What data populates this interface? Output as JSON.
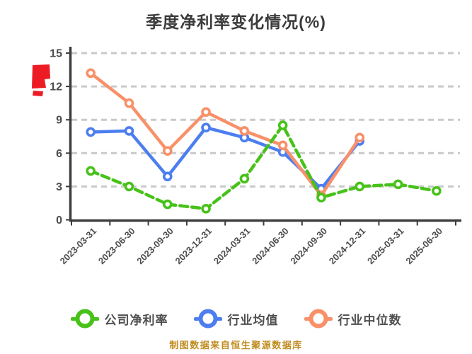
{
  "footer": "制图数据来自恒生聚源数据库",
  "logo": {
    "color": "#ed1c24"
  },
  "axis_style": {
    "axis_color": "#3d3d3d",
    "grid_color": "#c9c9c9",
    "label_color": "#4d4d4d"
  },
  "chart_data": {
    "type": "line",
    "title": "季度净利率变化情况(%)",
    "categories": [
      "2023-03-31",
      "2023-06-30",
      "2023-09-30",
      "2023-12-31",
      "2024-03-31",
      "2024-06-30",
      "2024-09-30",
      "2024-12-31",
      "2025-03-31",
      "2025-06-30"
    ],
    "series": [
      {
        "name": "公司净利率",
        "color": "#47c219",
        "style": "dashed",
        "values": [
          4.4,
          3.0,
          1.4,
          1.0,
          3.7,
          8.5,
          2.0,
          3.0,
          3.2,
          2.6
        ]
      },
      {
        "name": "行业均值",
        "color": "#4d7ef0",
        "style": "solid",
        "values": [
          7.9,
          8.0,
          3.9,
          8.3,
          7.4,
          6.1,
          2.8,
          7.1,
          null,
          null
        ]
      },
      {
        "name": "行业中位数",
        "color": "#f89069",
        "style": "solid",
        "values": [
          13.2,
          10.5,
          6.2,
          9.7,
          8.0,
          6.7,
          2.2,
          7.4,
          null,
          null
        ]
      }
    ],
    "ylim": [
      0,
      15
    ],
    "yticks": [
      0,
      3,
      6,
      9,
      12,
      15
    ],
    "grid": true,
    "legend_position": "bottom"
  }
}
